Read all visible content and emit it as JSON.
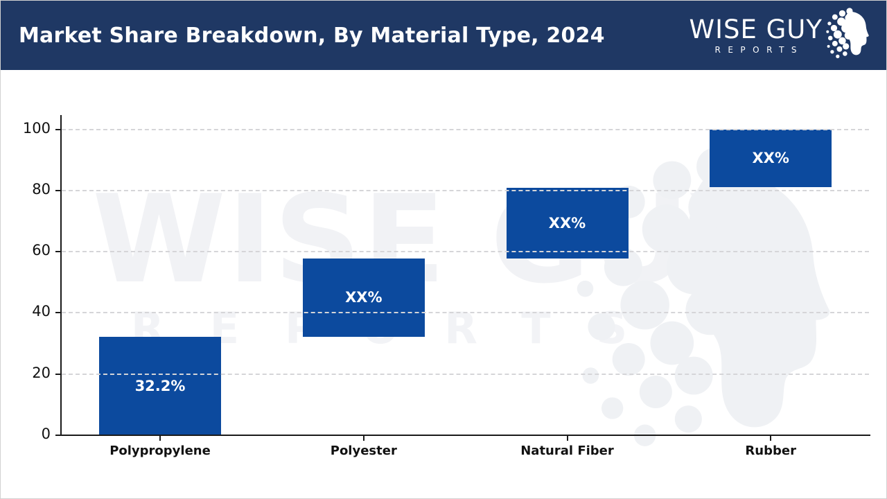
{
  "header": {
    "title": "Market Share Breakdown, By Material Type, 2024",
    "bg_color": "#1f3864",
    "logo": {
      "line1": "WISE GUY",
      "line2": "REPORTS"
    }
  },
  "watermark": {
    "line1": "WISE GUY",
    "line2": "REPORTS"
  },
  "chart_data": {
    "type": "bar",
    "subtype": "waterfall",
    "title": "Market Share Breakdown, By Material Type, 2024",
    "categories": [
      "Polypropylene",
      "Polyester",
      "Natural Fiber",
      "Rubber"
    ],
    "bars": [
      {
        "category": "Polypropylene",
        "start": 0,
        "end": 32.2,
        "label": "32.2%"
      },
      {
        "category": "Polyester",
        "start": 32.2,
        "end": 57.8,
        "label": "XX%"
      },
      {
        "category": "Natural Fiber",
        "start": 57.8,
        "end": 80.9,
        "label": "XX%"
      },
      {
        "category": "Rubber",
        "start": 81.0,
        "end": 100.0,
        "label": "XX%"
      }
    ],
    "y_ticks": [
      0,
      20,
      40,
      60,
      80,
      100
    ],
    "ylim": [
      0,
      104
    ],
    "xlabel": "",
    "ylabel": "",
    "grid": "horizontal-dashed",
    "legend": "none",
    "bar_color": "#0c4a9e",
    "bar_label_color": "#ffffff",
    "axis_color": "#1a1a1a",
    "gridline_color": "#d5d5d8"
  }
}
